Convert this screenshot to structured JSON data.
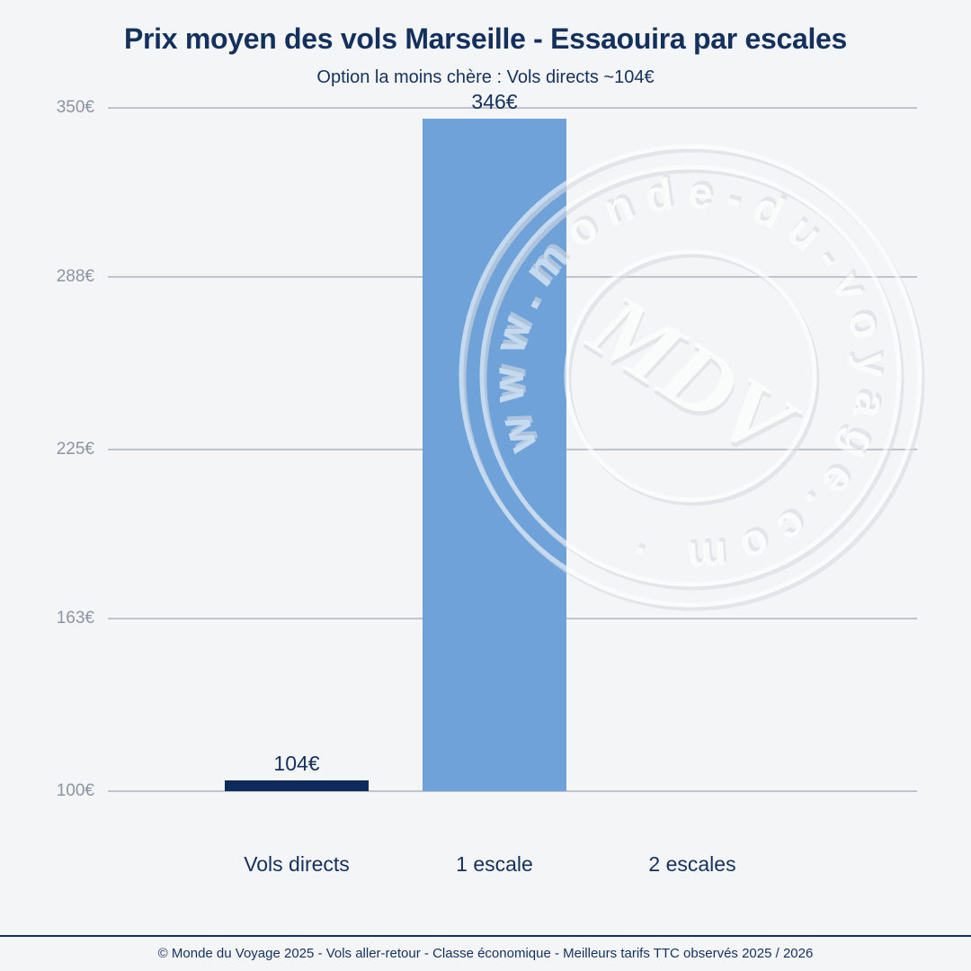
{
  "chart_data": {
    "type": "bar",
    "title": "Prix moyen des vols Marseille - Essaouira par escales",
    "subtitle": "Option la moins chère : Vols directs ~104€",
    "categories": [
      "Vols directs",
      "1 escale",
      "2 escales"
    ],
    "values": [
      104,
      346,
      null
    ],
    "value_labels": [
      "104€",
      "346€",
      null
    ],
    "bar_colors": [
      "#0d2b5b",
      "#6fa2d8",
      null
    ],
    "yticks": [
      {
        "value": 350,
        "label": "350€"
      },
      {
        "value": 288,
        "label": "288€"
      },
      {
        "value": 225,
        "label": "225€"
      },
      {
        "value": 163,
        "label": "163€"
      },
      {
        "value": 100,
        "label": "100€"
      }
    ],
    "ylim": [
      100,
      350
    ],
    "xlabel": "",
    "ylabel": "",
    "grid": true,
    "legend": false,
    "currency": "EUR"
  },
  "watermark": {
    "ring_text": "www.monde-du-voyage.com ·",
    "center_text": "MDV"
  },
  "footer": {
    "text": "© Monde du Voyage 2025 - Vols aller-retour - Classe économique - Meilleurs tarifs TTC observés 2025 / 2026"
  },
  "colors": {
    "background": "#f4f5f6",
    "title": "#14315e",
    "tick": "#8c94a4",
    "gridline": "#bfc3cb",
    "bar_direct": "#0d2b5b",
    "bar_one_stop": "#6fa2d8",
    "footer_line": "#14315e",
    "watermark": "#ffffff"
  }
}
